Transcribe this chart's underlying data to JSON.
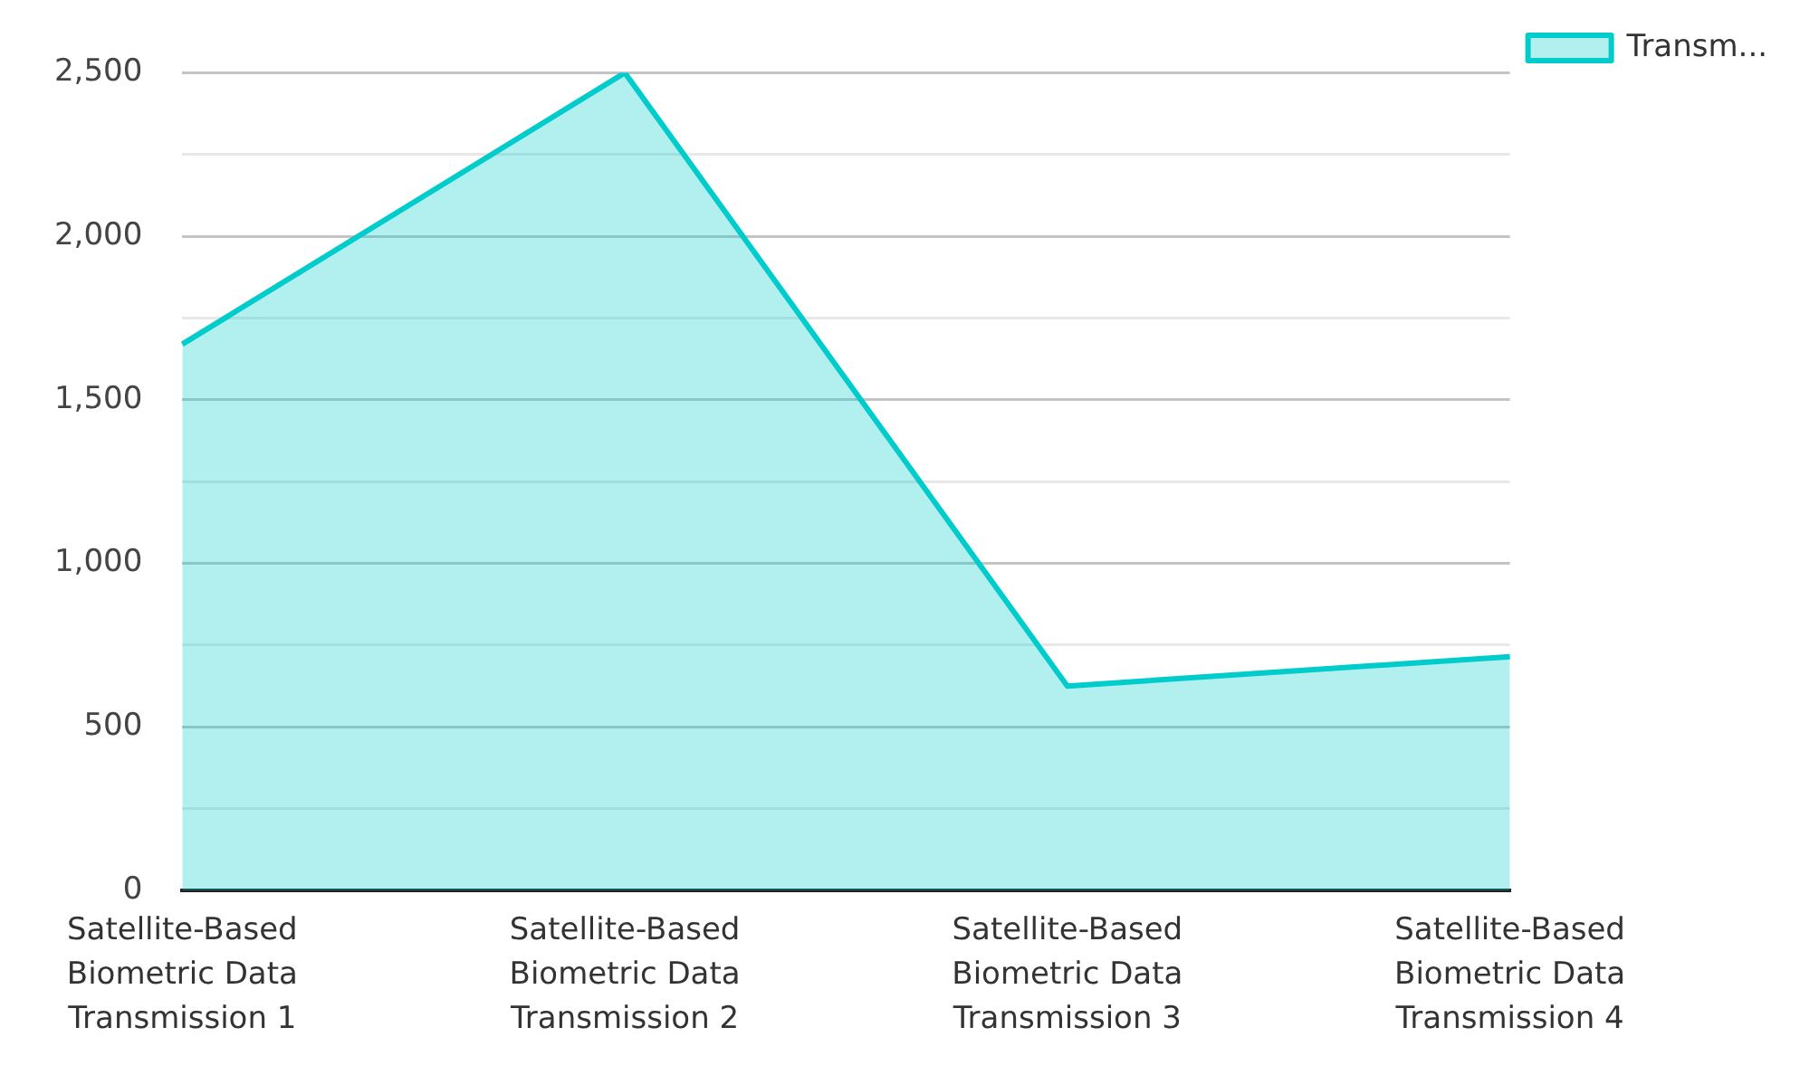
{
  "chart_data": {
    "type": "area",
    "categories": [
      "Satellite-Based Biometric Data Transmission 1",
      "Satellite-Based Biometric Data Transmission 2",
      "Satellite-Based Biometric Data Transmission 3",
      "Satellite-Based Biometric Data Transmission 4"
    ],
    "series": [
      {
        "name": "Transm...",
        "color": "#00cccc",
        "values": [
          1670,
          2500,
          625,
          715
        ]
      }
    ],
    "ylim": [
      0,
      2500
    ],
    "yticks": [
      0,
      {
        "value": 250,
        "label": null
      },
      500,
      {
        "value": 750,
        "label": null
      },
      {
        "value": 1000,
        "label": "1,000"
      },
      {
        "value": 1250,
        "label": null
      },
      {
        "value": 1500,
        "label": "1,500"
      },
      {
        "value": 1750,
        "label": null
      },
      {
        "value": 2000,
        "label": "2,000"
      },
      {
        "value": 2250,
        "label": null
      },
      {
        "value": 2500,
        "label": "2,500"
      }
    ],
    "grid": "y",
    "legend": "top right"
  }
}
